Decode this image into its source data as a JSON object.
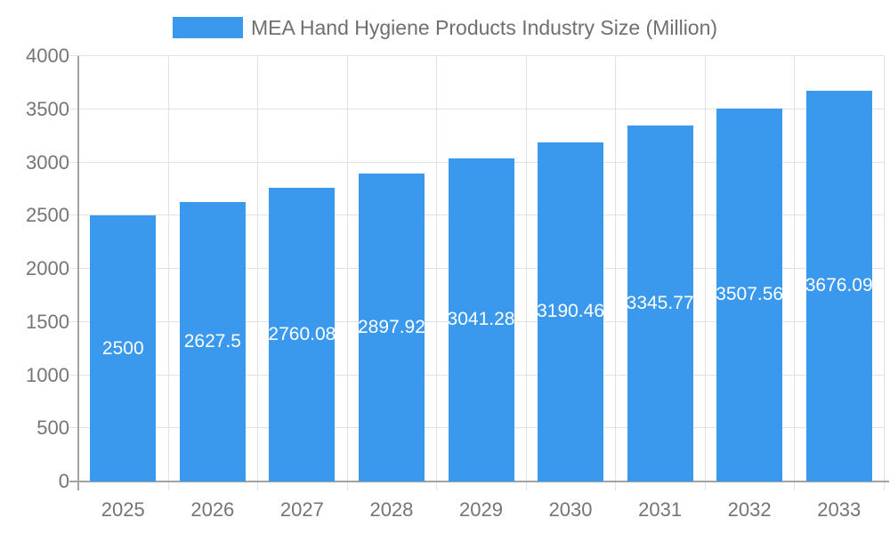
{
  "chart_data": {
    "type": "bar",
    "title": "MEA Hand Hygiene Products Industry Size (Million)",
    "categories": [
      "2025",
      "2026",
      "2027",
      "2028",
      "2029",
      "2030",
      "2031",
      "2032",
      "2033"
    ],
    "values": [
      2500,
      2627.5,
      2760.08,
      2897.92,
      3041.28,
      3190.46,
      3345.77,
      3507.56,
      3676.09
    ],
    "bar_labels": [
      "2500",
      "2627.5",
      "2760.08",
      "2897.92",
      "3041.28",
      "3190.46",
      "3345.77",
      "3507.56",
      "3676.09"
    ],
    "xlabel": "",
    "ylabel": "",
    "ylim": [
      0,
      4000
    ],
    "y_ticks": [
      0,
      500,
      1000,
      1500,
      2000,
      2500,
      3000,
      3500,
      4000
    ],
    "grid": "horizontal-and-vertical",
    "legend_position": "top-center",
    "colors": {
      "bar": "#3a99ec",
      "bar_value_text": "#ffffff",
      "axis_text": "#757575",
      "title_text": "#6f6f6f",
      "gridline": "#e2e2e2",
      "axis_line": "#a3a3a3",
      "background": "#ffffff"
    }
  }
}
